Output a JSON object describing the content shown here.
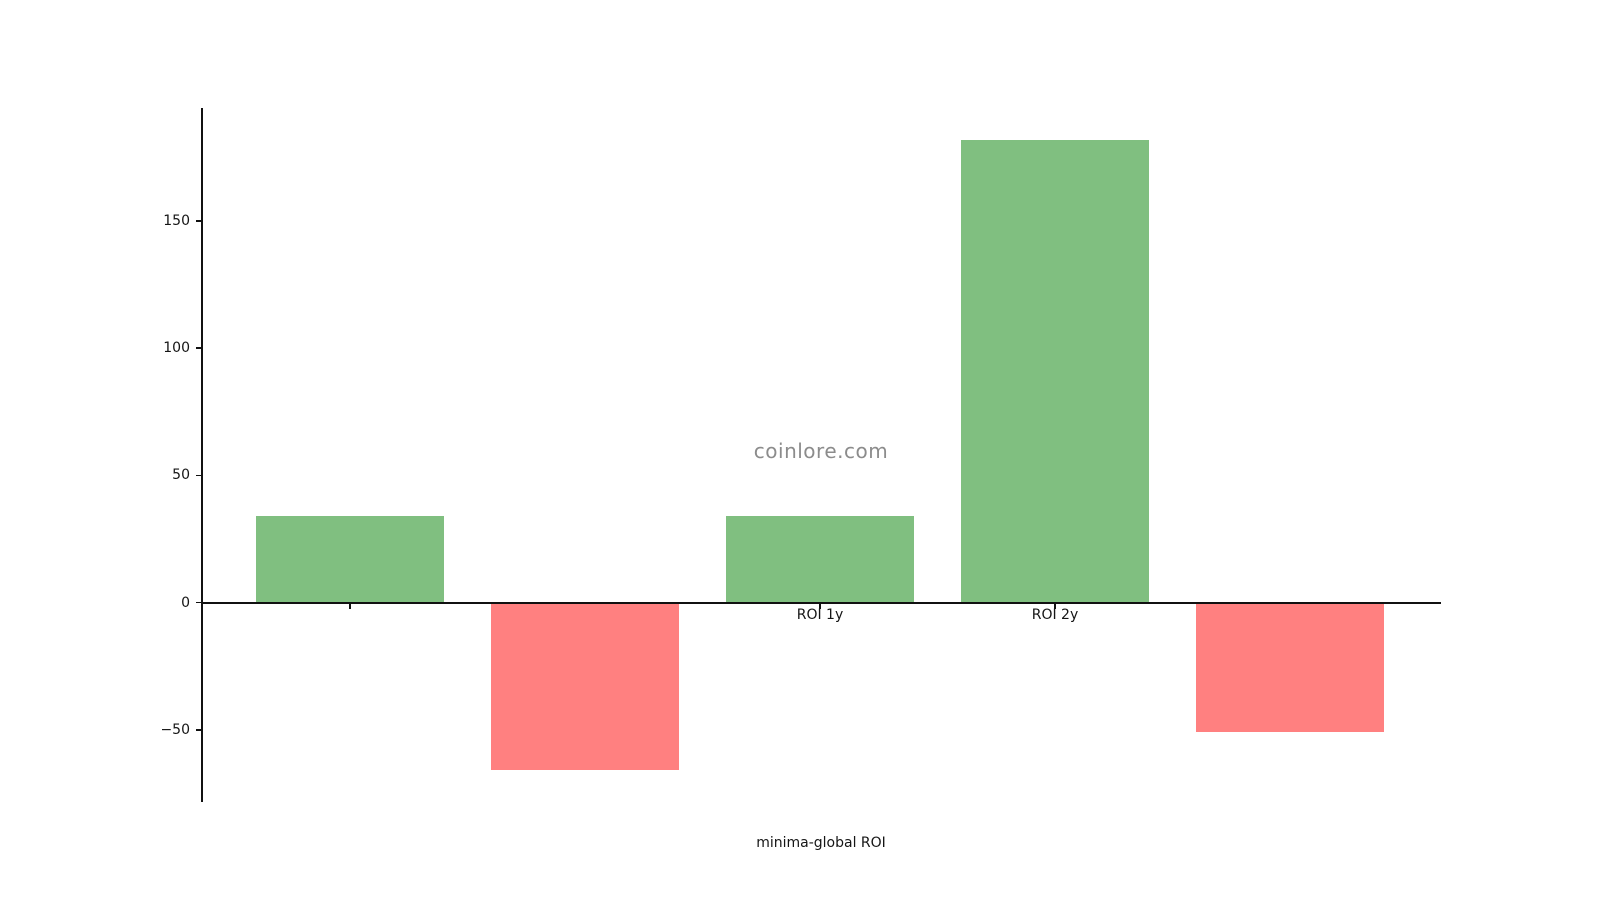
{
  "watermark": "coinlore.com",
  "chart_data": {
    "type": "bar",
    "title": "",
    "xlabel": "minima-global ROI",
    "ylabel": "",
    "categories": [
      "",
      "",
      "ROI 1y",
      "ROI 2y",
      ""
    ],
    "values": [
      34,
      -66,
      34,
      182,
      -51
    ],
    "bar_colors": [
      "#80bf80",
      "#ff8080",
      "#80bf80",
      "#80bf80",
      "#ff8080"
    ],
    "positive_color": "#80bf80",
    "negative_color": "#ff8080",
    "ylim": [
      -78.4,
      194.4
    ],
    "yticks": [
      -50,
      0,
      50,
      100,
      150
    ],
    "ytick_labels": [
      "−50",
      "0",
      "50",
      "100",
      "150"
    ],
    "xticks": [
      {
        "position": 0,
        "label": ""
      },
      {
        "position": 2,
        "label": "ROI 1y"
      },
      {
        "position": 3,
        "label": "ROI 2y"
      }
    ],
    "grid": false,
    "legend": null,
    "colors": {
      "axis": "#111111",
      "tick_text": "#151515",
      "watermark": "#8c8c8c",
      "background": "#ffffff"
    }
  }
}
